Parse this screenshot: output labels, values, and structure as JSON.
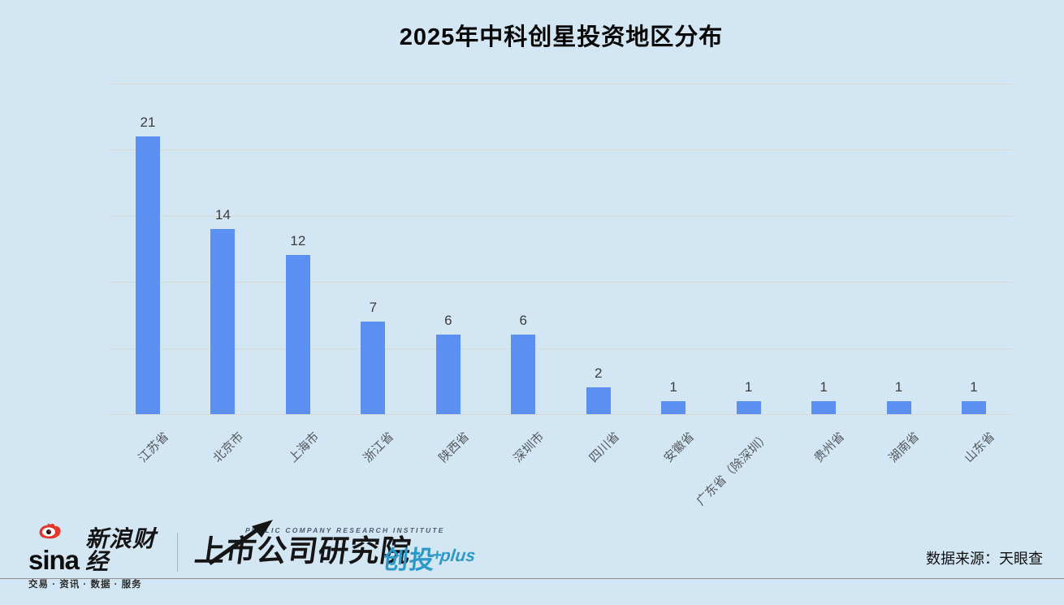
{
  "title": "2025年中科创星投资地区分布",
  "chart_data": {
    "type": "bar",
    "title": "2025年中科创星投资地区分布",
    "categories": [
      "江苏省",
      "北京市",
      "上海市",
      "浙江省",
      "陕西省",
      "深圳市",
      "四川省",
      "安徽省",
      "广东省（除深圳）",
      "贵州省",
      "湖南省",
      "山东省"
    ],
    "values": [
      21,
      14,
      12,
      7,
      6,
      6,
      2,
      1,
      1,
      1,
      1,
      1
    ],
    "xlabel": "",
    "ylabel": "",
    "ylim": [
      0,
      25.5
    ],
    "yticks": [
      0,
      5,
      10,
      15,
      20,
      25
    ],
    "grid": "horizontal",
    "legend": "none",
    "value_labels": true,
    "bar_color": "#5b8ff2",
    "background_color": "#d3e6f3"
  },
  "footer": {
    "sina": {
      "brand": "sina",
      "name": "新浪财经",
      "tagline": "交易 · 资讯 · 数据 · 服务"
    },
    "institute": {
      "en": "PUBLIC COMPANY RESEARCH INSTITUTE",
      "cn": "上市公司研究院"
    },
    "plus": {
      "cn": "创投",
      "sign": "+",
      "en": "plus"
    },
    "source": "数据来源：天眼查"
  },
  "colors": {
    "bar": "#5b8ff2",
    "background": "#d3e6f3",
    "gridline": "#d9d9d2",
    "value_label": "#3c3c3c",
    "tick_label": "#55595e",
    "plus_logo_blue": "#2b9aca",
    "sina_red": "#e6372b"
  }
}
